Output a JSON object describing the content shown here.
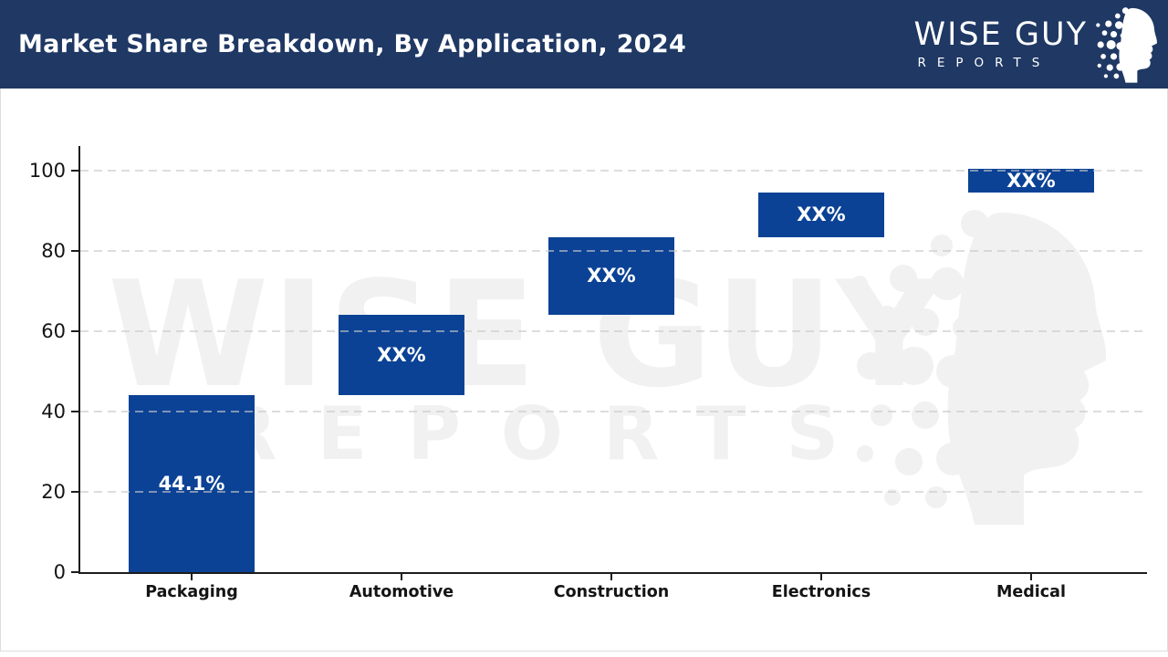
{
  "header": {
    "title": "Market Share Breakdown, By Application, 2024",
    "logo": {
      "line1": "WISE GUY",
      "line2": "REPORTS"
    }
  },
  "watermark": {
    "line1": "WISE GUY",
    "line2": "REPORTS"
  },
  "chart_data": {
    "type": "bar",
    "subtype": "waterfall",
    "title": "Market Share Breakdown, By Application, 2024",
    "xlabel": "",
    "ylabel": "",
    "categories": [
      "Packaging",
      "Automotive",
      "Construction",
      "Electronics",
      "Medical"
    ],
    "segments": [
      {
        "category": "Packaging",
        "start": 0,
        "end": 44.1,
        "label": "44.1%"
      },
      {
        "category": "Automotive",
        "start": 44.1,
        "end": 64.1,
        "label": "XX%"
      },
      {
        "category": "Construction",
        "start": 64.1,
        "end": 83.5,
        "label": "XX%"
      },
      {
        "category": "Electronics",
        "start": 83.5,
        "end": 94.5,
        "label": "XX%"
      },
      {
        "category": "Medical",
        "start": 94.5,
        "end": 100.4,
        "label": "XX%"
      }
    ],
    "yticks": [
      0,
      20,
      40,
      60,
      80,
      100
    ],
    "ylim": [
      0,
      106
    ],
    "grid": "horizontal-dashed",
    "legend": null,
    "bar_color": "#0b4295"
  },
  "colors": {
    "header_bg": "#1f3864",
    "bar": "#0b4295",
    "axis": "#1c1c1c",
    "gridline": "#c8c8c8",
    "watermark": "#f1f1f2",
    "value_label": "#ffffff"
  }
}
